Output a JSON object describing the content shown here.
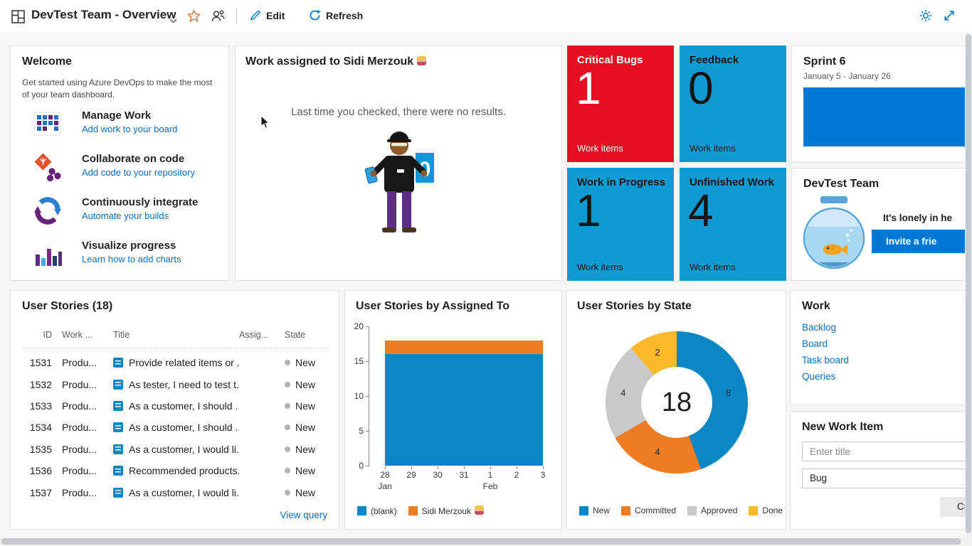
{
  "topbar": {
    "title": "DevTest Team - Overview",
    "edit_label": "Edit",
    "refresh_label": "Refresh"
  },
  "welcome": {
    "title": "Welcome",
    "subtitle": "Get started using Azure DevOps to make the most of your team dashboard.",
    "items": [
      {
        "icon": "kanban-board-icon",
        "title": "Manage Work",
        "link": "Add work to your board"
      },
      {
        "icon": "git-branch-icon",
        "title": "Collaborate on code",
        "link": "Add code to your repository"
      },
      {
        "icon": "ci-loop-icon",
        "title": "Continuously integrate",
        "link": "Automate your builds"
      },
      {
        "icon": "bar-chart-icon",
        "title": "Visualize progress",
        "link": "Learn how to add charts"
      }
    ]
  },
  "work_assigned": {
    "title": "Work assigned to Sidi Merzouk",
    "empty_message": "Last time you checked, there were no results.",
    "sign_value": "0"
  },
  "tiles": [
    {
      "label": "Critical Bugs",
      "value": "1",
      "caption": "Work items",
      "bg": "#e60e22",
      "fg": "#ffffff"
    },
    {
      "label": "Feedback",
      "value": "0",
      "caption": "Work items",
      "bg": "#0f9ad2",
      "fg": "#151515"
    },
    {
      "label": "Work in Progress",
      "value": "1",
      "caption": "Work items",
      "bg": "#0f9ad2",
      "fg": "#151515"
    },
    {
      "label": "Unfinished Work",
      "value": "4",
      "caption": "Work items",
      "bg": "#0f9ad2",
      "fg": "#151515"
    }
  ],
  "sprint": {
    "title": "Sprint 6",
    "dates": "January 5 - January 26",
    "bar_color": "#0078d4"
  },
  "team": {
    "title": "DevTest Team",
    "message": "It's lonely in he",
    "invite_label": "Invite a frie"
  },
  "user_stories": {
    "title": "User Stories (18)",
    "columns": [
      "ID",
      "Work ...",
      "Title",
      "Assig...",
      "State"
    ],
    "rows": [
      {
        "id": "1531",
        "type": "Produ...",
        "title": "Provide related items or ...",
        "state": "New"
      },
      {
        "id": "1532",
        "type": "Produ...",
        "title": "As tester, I need to test t...",
        "state": "New"
      },
      {
        "id": "1533",
        "type": "Produ...",
        "title": "As a customer, I should ...",
        "state": "New"
      },
      {
        "id": "1534",
        "type": "Produ...",
        "title": "As a customer, I should ...",
        "state": "New"
      },
      {
        "id": "1535",
        "type": "Produ...",
        "title": "As a customer, I would li...",
        "state": "New"
      },
      {
        "id": "1536",
        "type": "Produ...",
        "title": "Recommended products...",
        "state": "New"
      },
      {
        "id": "1537",
        "type": "Produ...",
        "title": "As a customer, I would li...",
        "state": "New"
      }
    ],
    "footer_link": "View query"
  },
  "chart_data": [
    {
      "type": "area",
      "title": "User Stories by Assigned To",
      "stacked": true,
      "x": [
        {
          "day": "28",
          "month": "Jan"
        },
        {
          "day": "29"
        },
        {
          "day": "30"
        },
        {
          "day": "31"
        },
        {
          "day": "1",
          "month": "Feb"
        },
        {
          "day": "2"
        },
        {
          "day": "3"
        }
      ],
      "series": [
        {
          "name": "(blank)",
          "color": "#0b86c4",
          "values": [
            16,
            16,
            16,
            16,
            16,
            16,
            16
          ]
        },
        {
          "name": "Sidi Merzouk",
          "color": "#ef7b23",
          "values": [
            2,
            2,
            2,
            2,
            2,
            2,
            2
          ]
        }
      ],
      "ylim": [
        0,
        20
      ],
      "yticks": [
        0,
        5,
        10,
        15,
        20
      ],
      "legend_position": "bottom"
    },
    {
      "type": "pie",
      "donut": true,
      "title": "User Stories by State",
      "center_total": 18,
      "slices": [
        {
          "label": "New",
          "value": 8,
          "color": "#0b86c4"
        },
        {
          "label": "Committed",
          "value": 4,
          "color": "#ef7b23"
        },
        {
          "label": "Approved",
          "value": 4,
          "color": "#c9c9c9"
        },
        {
          "label": "Done",
          "value": 2,
          "color": "#fbb829"
        }
      ],
      "legend_position": "bottom"
    }
  ],
  "work_card": {
    "title": "Work",
    "links": [
      "Backlog",
      "Board",
      "Task board",
      "Queries"
    ]
  },
  "new_work_item": {
    "title": "New Work Item",
    "title_placeholder": "Enter title",
    "type_value": "Bug",
    "create_label": "Cr"
  },
  "colors": {
    "accent_blue": "#0078d4",
    "link_blue": "#106ebe",
    "tile_red": "#e60e22",
    "tile_blue": "#0f9ad2",
    "chart_blue": "#0b86c4",
    "chart_orange": "#ef7b23",
    "chart_gray": "#c9c9c9",
    "chart_yellow": "#fbb829"
  }
}
